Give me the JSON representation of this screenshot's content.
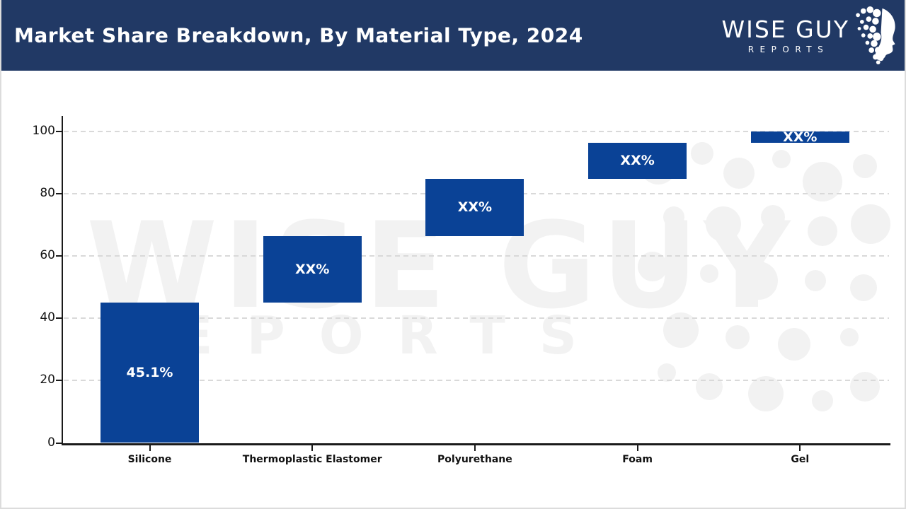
{
  "header": {
    "title": "Market Share Breakdown, By Material Type, 2024",
    "logo": {
      "line1": "WISE GUY",
      "line2": "REPORTS"
    }
  },
  "watermark": {
    "line1": "WISE GUY",
    "line2": "REPORTS"
  },
  "colors": {
    "header_bg": "#213965",
    "bar": "#0a4296",
    "value_label": "#ffffff",
    "gridline": "#d9d9d9",
    "axis": "#1a1a1a",
    "watermark": "#f2f2f2"
  },
  "chart_data": {
    "type": "bar",
    "subtype": "waterfall",
    "title": "Market Share Breakdown, By Material Type, 2024",
    "categories": [
      "Silicone",
      "Thermoplastic Elastomer",
      "Polyurethane",
      "Foam",
      "Gel"
    ],
    "bars": [
      {
        "category": "Silicone",
        "label": "45.1%",
        "start": 0,
        "end": 45.1
      },
      {
        "category": "Thermoplastic Elastomer",
        "label": "XX%",
        "start": 45.1,
        "end": 66.3
      },
      {
        "category": "Polyurethane",
        "label": "XX%",
        "start": 66.3,
        "end": 84.9
      },
      {
        "category": "Foam",
        "label": "XX%",
        "start": 84.9,
        "end": 96.4
      },
      {
        "category": "Gel",
        "label": "XX%",
        "start": 96.4,
        "end": 100
      }
    ],
    "xlabel": "",
    "ylabel": "",
    "ylim": [
      0,
      100
    ],
    "yticks": [
      0,
      20,
      40,
      60,
      80,
      100
    ],
    "grid": "horizontal-dashed",
    "legend": "none",
    "bar_color": "#0a4296",
    "value_label_color": "#ffffff"
  }
}
